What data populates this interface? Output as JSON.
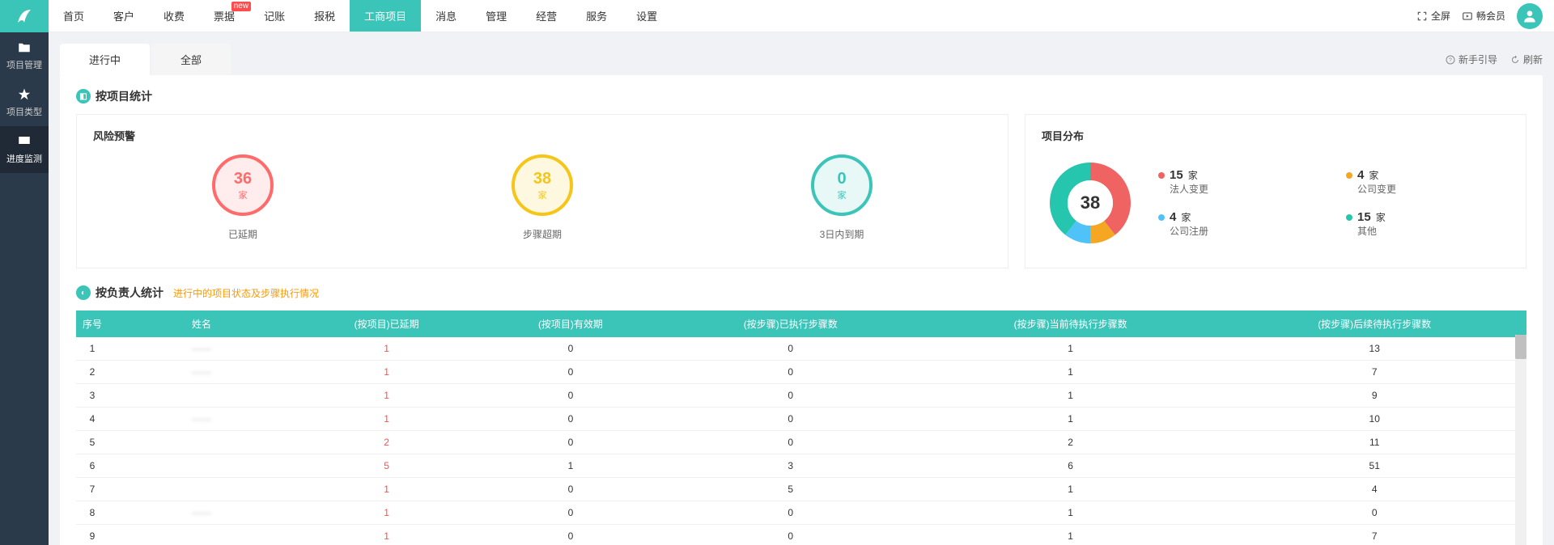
{
  "topnav": {
    "items": [
      "首页",
      "客户",
      "收费",
      "票据",
      "记账",
      "报税",
      "工商项目",
      "消息",
      "管理",
      "经营",
      "服务",
      "设置"
    ],
    "active_index": 6,
    "badge_new_index": 3,
    "badge_new_text": "new"
  },
  "topright": {
    "fullscreen": "全屏",
    "member": "畅会员"
  },
  "sidebar": {
    "items": [
      {
        "label": "项目管理",
        "icon": "folder"
      },
      {
        "label": "项目类型",
        "icon": "star"
      },
      {
        "label": "进度监测",
        "icon": "monitor"
      }
    ],
    "active_index": 2
  },
  "tabs": {
    "items": [
      "进行中",
      "全部"
    ],
    "active_index": 0,
    "actions": {
      "guide": "新手引导",
      "refresh": "刷新"
    }
  },
  "section_stats_title": "按项目统计",
  "risk": {
    "title": "风险预警",
    "circles": [
      {
        "value": "36",
        "unit": "家",
        "label": "已延期",
        "color": "#ff6b6b",
        "bg": "#ffecec"
      },
      {
        "value": "38",
        "unit": "家",
        "label": "步骤超期",
        "color": "#f5c518",
        "bg": "#fff8e1"
      },
      {
        "value": "0",
        "unit": "家",
        "label": "3日内到期",
        "color": "#3bc4b8",
        "bg": "#e8f8f6"
      }
    ]
  },
  "distribution": {
    "title": "项目分布",
    "total": "38",
    "donut_colors": {
      "slice1": "#f06363",
      "slice2": "#f5a623",
      "slice3": "#4fc3f7",
      "slice4": "#26c6ae"
    },
    "legend": [
      {
        "value": "15",
        "unit": "家",
        "label": "法人变更",
        "color": "#f06363"
      },
      {
        "value": "4",
        "unit": "家",
        "label": "公司变更",
        "color": "#f5a623"
      },
      {
        "value": "4",
        "unit": "家",
        "label": "公司注册",
        "color": "#4fc3f7"
      },
      {
        "value": "15",
        "unit": "家",
        "label": "其他",
        "color": "#26c6ae"
      }
    ]
  },
  "section_owner_title": "按负责人统计",
  "section_owner_sub": "进行中的项目状态及步骤执行情况",
  "table": {
    "columns": [
      "序号",
      "姓名",
      "(按项目)已延期",
      "(按项目)有效期",
      "(按步骤)已执行步骤数",
      "(按步骤)当前待执行步骤数",
      "(按步骤)后续待执行步骤数"
    ],
    "col_widths": [
      "40px",
      "230px",
      "1fr",
      "1fr",
      "1fr",
      "1fr",
      "1fr"
    ],
    "rows": [
      [
        "1",
        "——",
        "1",
        "0",
        "0",
        "1",
        "13"
      ],
      [
        "2",
        "——",
        "1",
        "0",
        "0",
        "1",
        "7"
      ],
      [
        "3",
        "",
        "1",
        "0",
        "0",
        "1",
        "9"
      ],
      [
        "4",
        "——",
        "1",
        "0",
        "0",
        "1",
        "10"
      ],
      [
        "5",
        "",
        "2",
        "0",
        "0",
        "2",
        "11"
      ],
      [
        "6",
        "",
        "5",
        "1",
        "3",
        "6",
        "51"
      ],
      [
        "7",
        "",
        "1",
        "0",
        "5",
        "1",
        "4"
      ],
      [
        "8",
        "——",
        "1",
        "0",
        "0",
        "1",
        "0"
      ],
      [
        "9",
        "",
        "1",
        "0",
        "0",
        "1",
        "7"
      ]
    ],
    "overdue_col_index": 2
  },
  "colors": {
    "primary": "#3bc4b8",
    "sidebar_bg": "#2b3a4a",
    "danger": "#ff4d4f"
  }
}
